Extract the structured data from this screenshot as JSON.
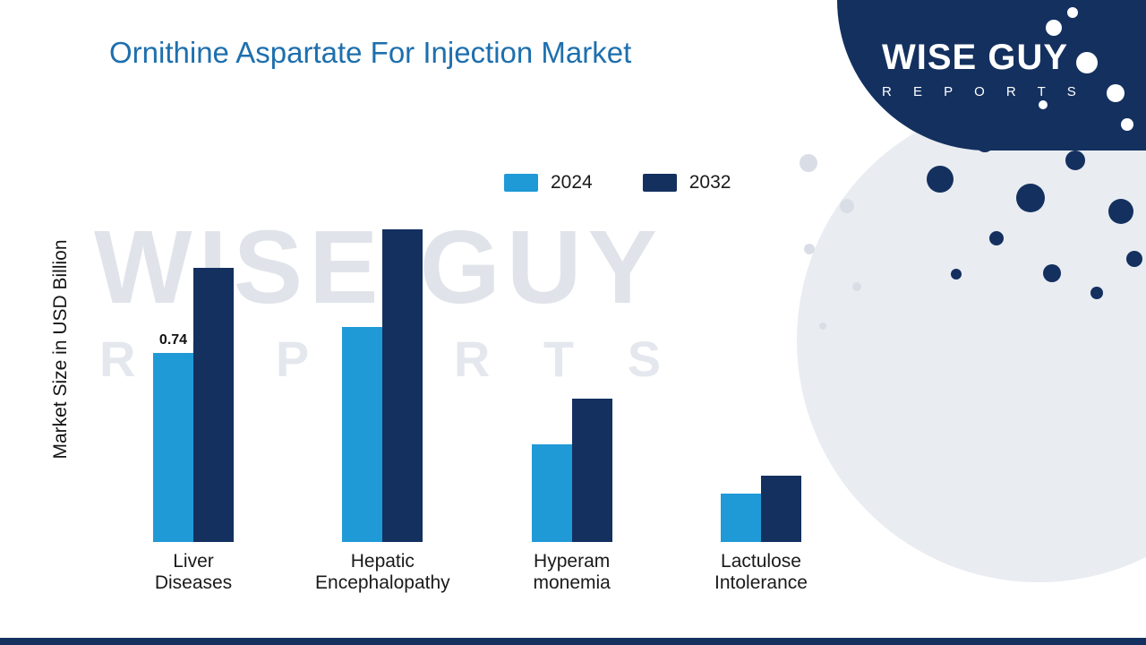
{
  "page": {
    "title": "Ornithine Aspartate For Injection Market"
  },
  "logo": {
    "line1": "WISE GUY",
    "line2": "R E P O R T S"
  },
  "watermark": {
    "line1": "WISE GUY",
    "line2": "R E P O R T S"
  },
  "chart_data": {
    "type": "bar",
    "title": "Ornithine Aspartate For Injection Market",
    "xlabel": "",
    "ylabel": "Market Size in USD Billion",
    "categories": [
      "Liver Diseases",
      "Hepatic Encephalopathy",
      "Hyperammonemia",
      "Lactulose Intolerance"
    ],
    "category_label_lines": [
      [
        "Liver",
        "Diseases"
      ],
      [
        "Hepatic",
        "Encephalopathy"
      ],
      [
        "Hyperam",
        "monemia"
      ],
      [
        "Lactulose",
        "Intolerance"
      ]
    ],
    "series": [
      {
        "name": "2024",
        "color": "#1f9ad7",
        "values": [
          0.74,
          0.84,
          0.38,
          0.19
        ]
      },
      {
        "name": "2032",
        "color": "#13305f",
        "values": [
          1.07,
          1.22,
          0.56,
          0.26
        ]
      }
    ],
    "data_labels": [
      {
        "series": "2024",
        "category": "Liver Diseases",
        "text": "0.74"
      }
    ],
    "ylim": [
      0,
      1.4
    ],
    "grid": false,
    "legend_position": "top-center"
  },
  "colors": {
    "accent_blue": "#1f9ad7",
    "navy": "#13305f",
    "title_blue": "#1e6fad",
    "watermark_gray": "#e0e4ea",
    "face_gray": "#e9ecf1"
  }
}
